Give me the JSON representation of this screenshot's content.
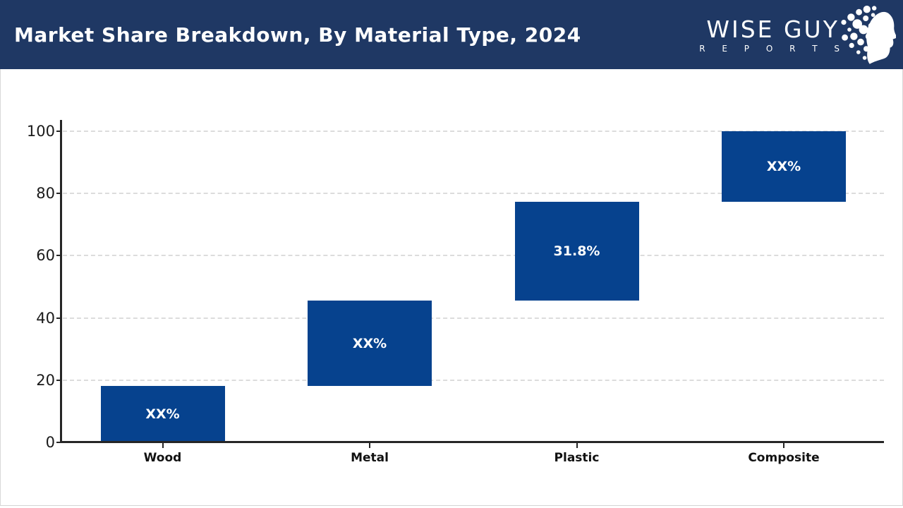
{
  "header": {
    "title": "Market Share Breakdown, By Material Type, 2024",
    "logo": {
      "name": "WISE GUY",
      "subtitle": "R E P O R T S"
    }
  },
  "watermark": {
    "line1": "WISE GUY",
    "line2": "R E P O R T S"
  },
  "colors": {
    "header_bg": "#1F3864",
    "bar": "#06428E",
    "grid": "#dcdcdc",
    "axis": "#262626",
    "bar_label": "#ffffff",
    "watermark": "#f2f2f4"
  },
  "chart_data": {
    "type": "bar",
    "subtype": "waterfall",
    "title": "Market Share Breakdown, By Material Type, 2024",
    "categories": [
      "Wood",
      "Metal",
      "Plastic",
      "Composite"
    ],
    "segments": [
      {
        "category": "Wood",
        "start": 0,
        "end": 18.2,
        "label": "XX%"
      },
      {
        "category": "Metal",
        "start": 18.2,
        "end": 45.5,
        "label": "XX%"
      },
      {
        "category": "Plastic",
        "start": 45.5,
        "end": 77.3,
        "label": "31.8%"
      },
      {
        "category": "Composite",
        "start": 77.3,
        "end": 100,
        "label": "XX%"
      }
    ],
    "ylim": [
      0,
      100
    ],
    "yticks": [
      0,
      20,
      40,
      60,
      80,
      100
    ],
    "xlabel": "",
    "ylabel": "",
    "grid": "horizontal-dashed",
    "legend": "none"
  }
}
